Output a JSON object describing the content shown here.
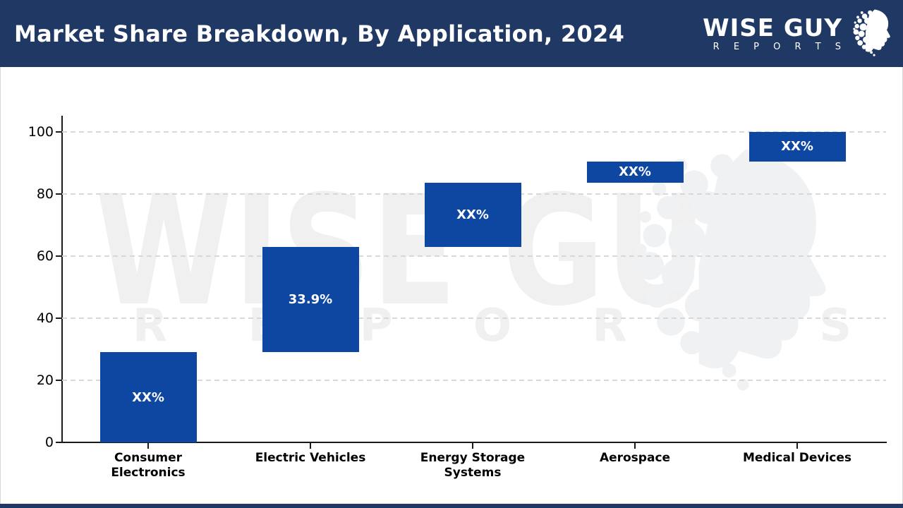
{
  "header": {
    "title": "Market Share Breakdown, By Application, 2024",
    "brand": {
      "line1": "WISE GUY",
      "line2": "R E P O R T S"
    }
  },
  "watermark": {
    "line1": "WISE GUY",
    "line2": "R E P O R T S"
  },
  "colors": {
    "header_bg": "#1f3864",
    "bar": "#0d47a1",
    "grid": "#d8d8d8",
    "axis": "#1a1a1a",
    "watermark": "#f0f0f0",
    "bar_label": "#ffffff",
    "text": "#000000"
  },
  "chart_data": {
    "type": "bar",
    "subtype": "waterfall",
    "title": "Market Share Breakdown, By Application, 2024",
    "categories": [
      "Consumer Electronics",
      "Electric Vehicles",
      "Energy Storage Systems",
      "Aerospace",
      "Medical Devices"
    ],
    "segments": [
      {
        "category": "Consumer Electronics",
        "label_lines": [
          "Consumer",
          "Electronics"
        ],
        "start": 0,
        "end": 29.0,
        "value": 29.0,
        "display_label": "XX%"
      },
      {
        "category": "Electric Vehicles",
        "label_lines": [
          "Electric Vehicles"
        ],
        "start": 29.0,
        "end": 62.9,
        "value": 33.9,
        "display_label": "33.9%"
      },
      {
        "category": "Energy Storage Systems",
        "label_lines": [
          "Energy Storage",
          "Systems"
        ],
        "start": 62.9,
        "end": 83.6,
        "value": 20.7,
        "display_label": "XX%"
      },
      {
        "category": "Aerospace",
        "label_lines": [
          "Aerospace"
        ],
        "start": 83.6,
        "end": 90.5,
        "value": 6.9,
        "display_label": "XX%"
      },
      {
        "category": "Medical Devices",
        "label_lines": [
          "Medical Devices"
        ],
        "start": 90.5,
        "end": 100.0,
        "value": 9.5,
        "display_label": "XX%"
      }
    ],
    "y_axis": {
      "ticks": [
        0,
        20,
        40,
        60,
        80,
        100
      ],
      "range": [
        0,
        105
      ]
    },
    "xlabel": "",
    "ylabel": "",
    "grid": "horizontal-dashed",
    "legend": "none"
  }
}
